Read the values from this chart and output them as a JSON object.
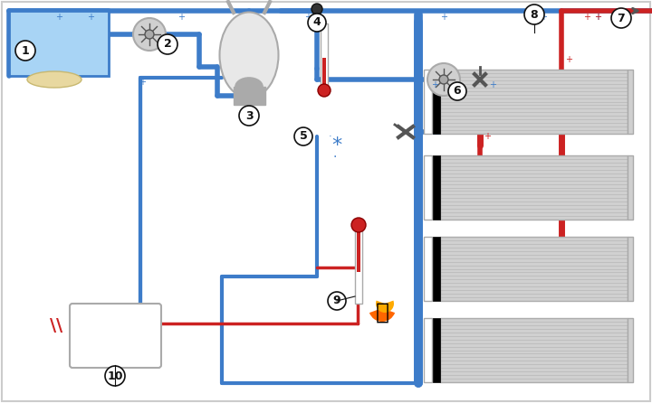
{
  "bg_color": "#ffffff",
  "border_color": "#cccccc",
  "blue": "#3d7cc9",
  "dark_blue": "#1a4a8a",
  "red": "#cc2222",
  "dark_red": "#aa1111",
  "gray_light": "#d0d0d0",
  "gray_med": "#aaaaaa",
  "gray_dark": "#555555",
  "black": "#111111",
  "white": "#ffffff",
  "panel_bg": "#c8c8c8",
  "pool_blue": "#a8d4f5",
  "pool_bg": "#e8f4e8",
  "label_bg": "#f5f5f5"
}
